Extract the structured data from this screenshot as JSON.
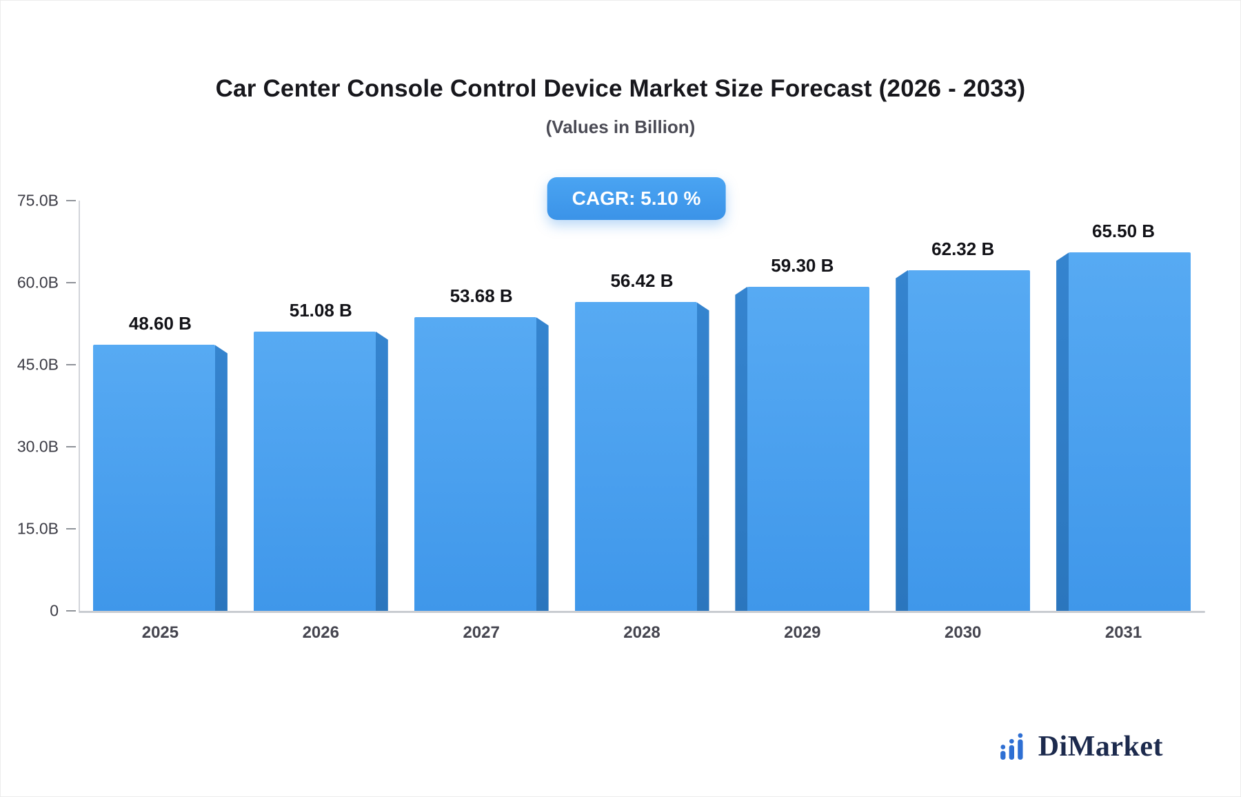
{
  "chart_data": {
    "type": "bar",
    "title": "Car Center Console Control Device Market Size Forecast (2026 - 2033)",
    "subtitle": "(Values in Billion)",
    "badge": "CAGR: 5.10 %",
    "categories": [
      "2025",
      "2026",
      "2027",
      "2028",
      "2029",
      "2030",
      "2031"
    ],
    "values": [
      48.6,
      51.08,
      53.68,
      56.42,
      59.3,
      62.32,
      65.5
    ],
    "value_labels": [
      "48.60 B",
      "51.08 B",
      "53.68 B",
      "56.42 B",
      "59.30 B",
      "62.32 B",
      "65.50 B"
    ],
    "ylim": [
      0,
      75
    ],
    "yticks": [
      {
        "label": "75.0B",
        "value": 75
      },
      {
        "label": "60.0B",
        "value": 60
      },
      {
        "label": "45.0B",
        "value": 45
      },
      {
        "label": "30.0B",
        "value": 30
      },
      {
        "label": "15.0B",
        "value": 15
      },
      {
        "label": "0",
        "value": 0
      }
    ],
    "grid": false,
    "legend": "none",
    "bar_color": "#3f9ceb",
    "bar_side_color": "#2e7ec9",
    "badge_color": "#3d9bef"
  },
  "footer": {
    "brand": "DiMarket"
  }
}
